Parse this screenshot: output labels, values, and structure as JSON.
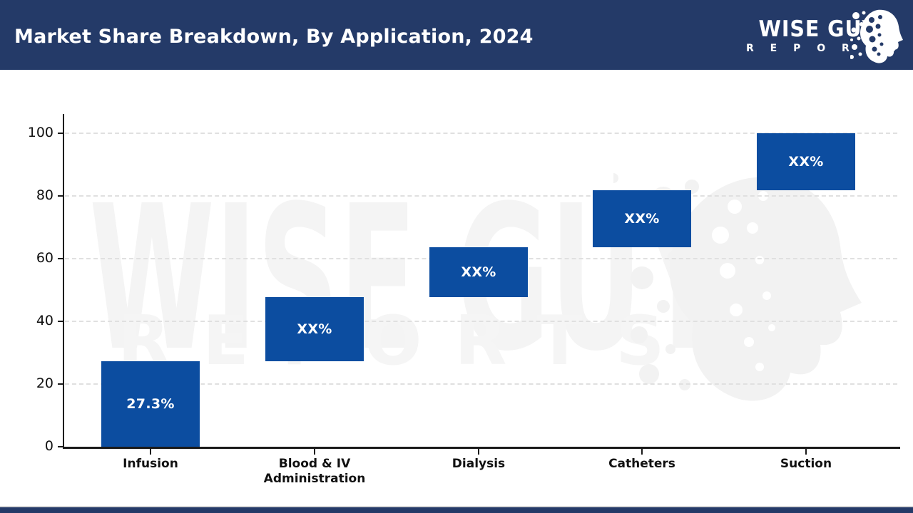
{
  "header": {
    "title": "Market Share Breakdown, By Application, 2024",
    "logo": {
      "line1": "WISE GUY",
      "line2": "R E P O R T S"
    }
  },
  "watermark": {
    "line1": "WISE GUY",
    "line2": "REPORTS"
  },
  "chart_data": {
    "type": "bar",
    "subtype": "waterfall",
    "title": "Market Share Breakdown, By Application, 2024",
    "categories": [
      "Infusion",
      "Blood & IV Administration",
      "Dialysis",
      "Catheters",
      "Suction"
    ],
    "segments": [
      {
        "category": "Infusion",
        "start": 0,
        "end": 27.3,
        "label": "27.3%"
      },
      {
        "category": "Blood & IV Administration",
        "start": 27.3,
        "end": 47.7,
        "label": "XX%"
      },
      {
        "category": "Dialysis",
        "start": 47.7,
        "end": 63.6,
        "label": "XX%"
      },
      {
        "category": "Catheters",
        "start": 63.6,
        "end": 81.8,
        "label": "XX%"
      },
      {
        "category": "Suction",
        "start": 81.8,
        "end": 100,
        "label": "XX%"
      }
    ],
    "xlabel": "",
    "ylabel": "",
    "ylim": [
      0,
      100
    ],
    "yticks": [
      0,
      20,
      40,
      60,
      80,
      100
    ],
    "grid": "horizontal-dashed",
    "legend": "none",
    "bar_color": "#0c4da0",
    "bar_label_color": "#ffffff"
  },
  "colors": {
    "header_bg": "#243a68",
    "footer_bg": "#243a68",
    "bar": "#0c4da0",
    "grid": "#e0e0e0",
    "axis": "#1a1a1a",
    "watermark": "#f4f4f4"
  }
}
